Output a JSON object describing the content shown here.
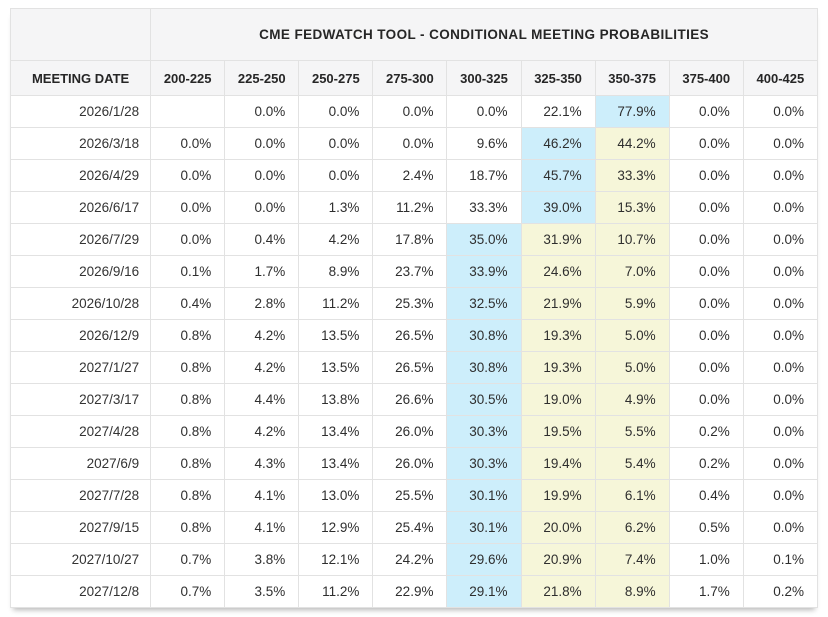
{
  "app": {
    "title": "CME FEDWATCH TOOL - CONDITIONAL MEETING PROBABILITIES"
  },
  "colors": {
    "cyan_highlight": "#cdeefb",
    "yellow_highlight": "#f6f6d9",
    "header_background": "#f5f5f6",
    "border": "#e2e2e2",
    "text": "#2e2e2e"
  },
  "table": {
    "date_column_header": "MEETING DATE",
    "rate_columns": [
      "200-225",
      "225-250",
      "250-275",
      "275-300",
      "300-325",
      "325-350",
      "350-375",
      "375-400",
      "400-425"
    ],
    "highlight_legend": {
      "c": "cyan (highest probability in row)",
      "y": "yellow"
    },
    "rows": [
      {
        "date": "2026/1/28",
        "values": [
          "",
          "0.0%",
          "0.0%",
          "0.0%",
          "0.0%",
          "22.1%",
          "77.9%",
          "0.0%",
          "0.0%"
        ],
        "highlights": [
          "",
          "",
          "",
          "",
          "",
          "",
          "c",
          "",
          ""
        ]
      },
      {
        "date": "2026/3/18",
        "values": [
          "0.0%",
          "0.0%",
          "0.0%",
          "0.0%",
          "9.6%",
          "46.2%",
          "44.2%",
          "0.0%",
          "0.0%"
        ],
        "highlights": [
          "",
          "",
          "",
          "",
          "",
          "c",
          "y",
          "",
          ""
        ]
      },
      {
        "date": "2026/4/29",
        "values": [
          "0.0%",
          "0.0%",
          "0.0%",
          "2.4%",
          "18.7%",
          "45.7%",
          "33.3%",
          "0.0%",
          "0.0%"
        ],
        "highlights": [
          "",
          "",
          "",
          "",
          "",
          "c",
          "y",
          "",
          ""
        ]
      },
      {
        "date": "2026/6/17",
        "values": [
          "0.0%",
          "0.0%",
          "1.3%",
          "11.2%",
          "33.3%",
          "39.0%",
          "15.3%",
          "0.0%",
          "0.0%"
        ],
        "highlights": [
          "",
          "",
          "",
          "",
          "",
          "c",
          "y",
          "",
          ""
        ]
      },
      {
        "date": "2026/7/29",
        "values": [
          "0.0%",
          "0.4%",
          "4.2%",
          "17.8%",
          "35.0%",
          "31.9%",
          "10.7%",
          "0.0%",
          "0.0%"
        ],
        "highlights": [
          "",
          "",
          "",
          "",
          "c",
          "y",
          "y",
          "",
          ""
        ]
      },
      {
        "date": "2026/9/16",
        "values": [
          "0.1%",
          "1.7%",
          "8.9%",
          "23.7%",
          "33.9%",
          "24.6%",
          "7.0%",
          "0.0%",
          "0.0%"
        ],
        "highlights": [
          "",
          "",
          "",
          "",
          "c",
          "y",
          "y",
          "",
          ""
        ]
      },
      {
        "date": "2026/10/28",
        "values": [
          "0.4%",
          "2.8%",
          "11.2%",
          "25.3%",
          "32.5%",
          "21.9%",
          "5.9%",
          "0.0%",
          "0.0%"
        ],
        "highlights": [
          "",
          "",
          "",
          "",
          "c",
          "y",
          "y",
          "",
          ""
        ]
      },
      {
        "date": "2026/12/9",
        "values": [
          "0.8%",
          "4.2%",
          "13.5%",
          "26.5%",
          "30.8%",
          "19.3%",
          "5.0%",
          "0.0%",
          "0.0%"
        ],
        "highlights": [
          "",
          "",
          "",
          "",
          "c",
          "y",
          "y",
          "",
          ""
        ]
      },
      {
        "date": "2027/1/27",
        "values": [
          "0.8%",
          "4.2%",
          "13.5%",
          "26.5%",
          "30.8%",
          "19.3%",
          "5.0%",
          "0.0%",
          "0.0%"
        ],
        "highlights": [
          "",
          "",
          "",
          "",
          "c",
          "y",
          "y",
          "",
          ""
        ]
      },
      {
        "date": "2027/3/17",
        "values": [
          "0.8%",
          "4.4%",
          "13.8%",
          "26.6%",
          "30.5%",
          "19.0%",
          "4.9%",
          "0.0%",
          "0.0%"
        ],
        "highlights": [
          "",
          "",
          "",
          "",
          "c",
          "y",
          "y",
          "",
          ""
        ]
      },
      {
        "date": "2027/4/28",
        "values": [
          "0.8%",
          "4.2%",
          "13.4%",
          "26.0%",
          "30.3%",
          "19.5%",
          "5.5%",
          "0.2%",
          "0.0%"
        ],
        "highlights": [
          "",
          "",
          "",
          "",
          "c",
          "y",
          "y",
          "",
          ""
        ]
      },
      {
        "date": "2027/6/9",
        "values": [
          "0.8%",
          "4.3%",
          "13.4%",
          "26.0%",
          "30.3%",
          "19.4%",
          "5.4%",
          "0.2%",
          "0.0%"
        ],
        "highlights": [
          "",
          "",
          "",
          "",
          "c",
          "y",
          "y",
          "",
          ""
        ]
      },
      {
        "date": "2027/7/28",
        "values": [
          "0.8%",
          "4.1%",
          "13.0%",
          "25.5%",
          "30.1%",
          "19.9%",
          "6.1%",
          "0.4%",
          "0.0%"
        ],
        "highlights": [
          "",
          "",
          "",
          "",
          "c",
          "y",
          "y",
          "",
          ""
        ]
      },
      {
        "date": "2027/9/15",
        "values": [
          "0.8%",
          "4.1%",
          "12.9%",
          "25.4%",
          "30.1%",
          "20.0%",
          "6.2%",
          "0.5%",
          "0.0%"
        ],
        "highlights": [
          "",
          "",
          "",
          "",
          "c",
          "y",
          "y",
          "",
          ""
        ]
      },
      {
        "date": "2027/10/27",
        "values": [
          "0.7%",
          "3.8%",
          "12.1%",
          "24.2%",
          "29.6%",
          "20.9%",
          "7.4%",
          "1.0%",
          "0.1%"
        ],
        "highlights": [
          "",
          "",
          "",
          "",
          "c",
          "y",
          "y",
          "",
          ""
        ]
      },
      {
        "date": "2027/12/8",
        "values": [
          "0.7%",
          "3.5%",
          "11.2%",
          "22.9%",
          "29.1%",
          "21.8%",
          "8.9%",
          "1.7%",
          "0.2%"
        ],
        "highlights": [
          "",
          "",
          "",
          "",
          "c",
          "y",
          "y",
          "",
          ""
        ]
      }
    ]
  }
}
